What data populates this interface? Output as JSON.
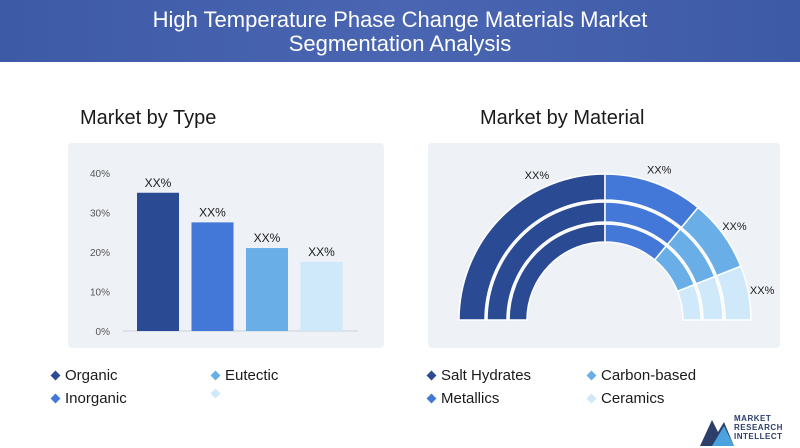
{
  "header": {
    "title_line1": "High Temperature Phase Change Materials Market",
    "title_line2": "Segmentation Analysis"
  },
  "left": {
    "title": "Market by Type",
    "legend": [
      {
        "label": "Organic",
        "color": "#2b4a94"
      },
      {
        "label": "Eutectic",
        "color": "#6aaee8"
      },
      {
        "label": "Inorganic",
        "color": "#4378d8"
      },
      {
        "label": "",
        "color": "#cfe8fa"
      }
    ]
  },
  "right": {
    "title": "Market by Material",
    "legend": [
      {
        "label": "Salt Hydrates",
        "color": "#2b4a94"
      },
      {
        "label": "Carbon-based",
        "color": "#6aaee8"
      },
      {
        "label": "Metallics",
        "color": "#4378d8"
      },
      {
        "label": "Ceramics",
        "color": "#cfe8fa"
      }
    ]
  },
  "logo": {
    "line1": "MARKET",
    "line2": "RESEARCH",
    "line3": "INTELLECT"
  },
  "chart_data": [
    {
      "type": "bar",
      "title": "Market by Type",
      "categories": [
        "Organic",
        "Inorganic",
        "Eutectic",
        ""
      ],
      "values": [
        35,
        27.5,
        21,
        17.5
      ],
      "data_labels": [
        "XX%",
        "XX%",
        "XX%",
        "XX%"
      ],
      "colors": [
        "#2b4a94",
        "#4378d8",
        "#6aaee8",
        "#cfe8fa"
      ],
      "yticks": [
        "0%",
        "10%",
        "20%",
        "30%",
        "40%"
      ],
      "ylim": [
        0,
        40
      ]
    },
    {
      "type": "pie",
      "title": "Market by Material",
      "categories": [
        "Salt Hydrates",
        "Metallics",
        "Carbon-based",
        "Ceramics"
      ],
      "values": [
        50,
        22,
        16,
        12
      ],
      "data_labels": [
        "XX%",
        "XX%",
        "XX%",
        "XX%"
      ],
      "colors": [
        "#2b4a94",
        "#4378d8",
        "#6aaee8",
        "#cfe8fa"
      ]
    }
  ]
}
